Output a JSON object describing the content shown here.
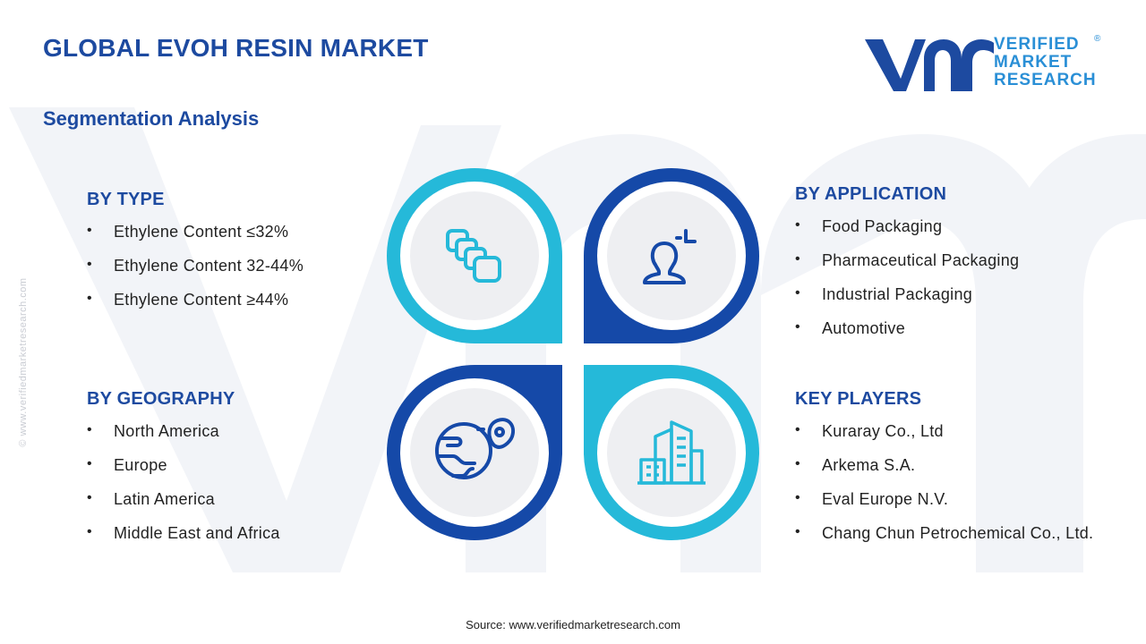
{
  "title": "GLOBAL EVOH RESIN MARKET",
  "subtitle": "Segmentation Analysis",
  "logo": {
    "line1": "VERIFIED",
    "line2": "MARKET",
    "line3": "RESEARCH",
    "registered": "®"
  },
  "side_url": "© www.verifiedmarketresearch.com",
  "segments": {
    "type": {
      "heading": "BY TYPE",
      "items": [
        "Ethylene Content ≤32%",
        "Ethylene Content 32-44%",
        "Ethylene Content ≥44%"
      ]
    },
    "application": {
      "heading": "BY APPLICATION",
      "items": [
        "Food Packaging",
        "Pharmaceutical Packaging",
        "Industrial Packaging",
        "Automotive"
      ]
    },
    "geography": {
      "heading": "BY GEOGRAPHY",
      "items": [
        "North America",
        "Europe",
        "Latin America",
        "Middle East and Africa"
      ]
    },
    "key_players": {
      "heading": "KEY PLAYERS",
      "items": [
        "Kuraray Co., Ltd",
        "Arkema S.A.",
        "Eval Europe N.V.",
        "Chang Chun Petrochemical Co., Ltd."
      ]
    }
  },
  "icons": {
    "type": "layers-icon",
    "application": "user-icon",
    "geography": "globe-pin-icon",
    "key_players": "buildings-icon"
  },
  "colors": {
    "title": "#1d4aa0",
    "light_blue": "#25b9d9",
    "dark_blue": "#1549a8",
    "logo_blue": "#1d4aa0",
    "logo_text": "#2a8fd6"
  },
  "source": "Source: www.verifiedmarketresearch.com"
}
